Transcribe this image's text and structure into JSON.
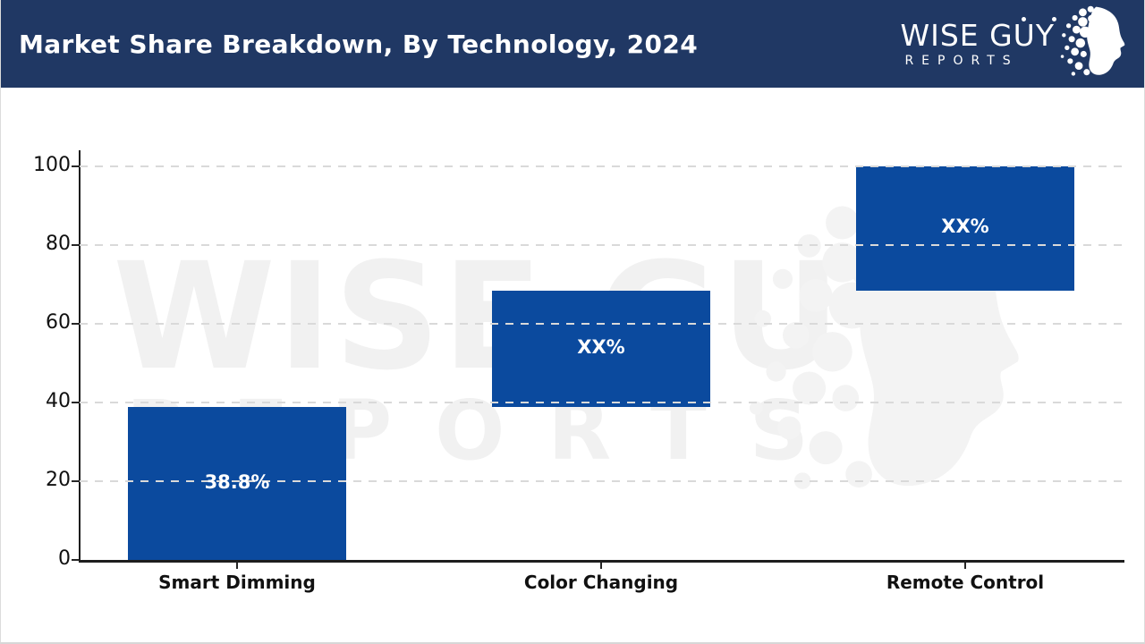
{
  "header": {
    "title": "Market Share Breakdown, By Technology, 2024",
    "background": "#203864",
    "logo": {
      "line1": "WISE GUY",
      "line2": "REPORTS",
      "face_icon": "dotted-face-profile"
    }
  },
  "watermark": {
    "line1": "WISE GUY",
    "line2": "REPORTS"
  },
  "chart_data": {
    "type": "bar",
    "subtype": "waterfall-floating-bars",
    "title": "Market Share Breakdown, By Technology, 2024",
    "categories": [
      "Smart Dimming",
      "Color Changing",
      "Remote Control"
    ],
    "series": [
      {
        "name": "Market Share",
        "segments": [
          {
            "category": "Smart Dimming",
            "start": 0,
            "end": 38.8,
            "label": "38.8%"
          },
          {
            "category": "Color Changing",
            "start": 38.8,
            "end": 68.5,
            "label": "XX%"
          },
          {
            "category": "Remote Control",
            "start": 68.5,
            "end": 100,
            "label": "XX%"
          }
        ]
      }
    ],
    "xlabel": "",
    "ylabel": "",
    "y_ticks": [
      0,
      20,
      40,
      60,
      80,
      100
    ],
    "ylim": [
      0,
      104
    ],
    "grid": true,
    "legend": false,
    "bar_color": "#0b4a9e",
    "bar_label_color": "#ffffff",
    "gridline_color": "#d9d9d9",
    "axis_color": "#1d1d1d",
    "tick_label_color": "#111111"
  }
}
